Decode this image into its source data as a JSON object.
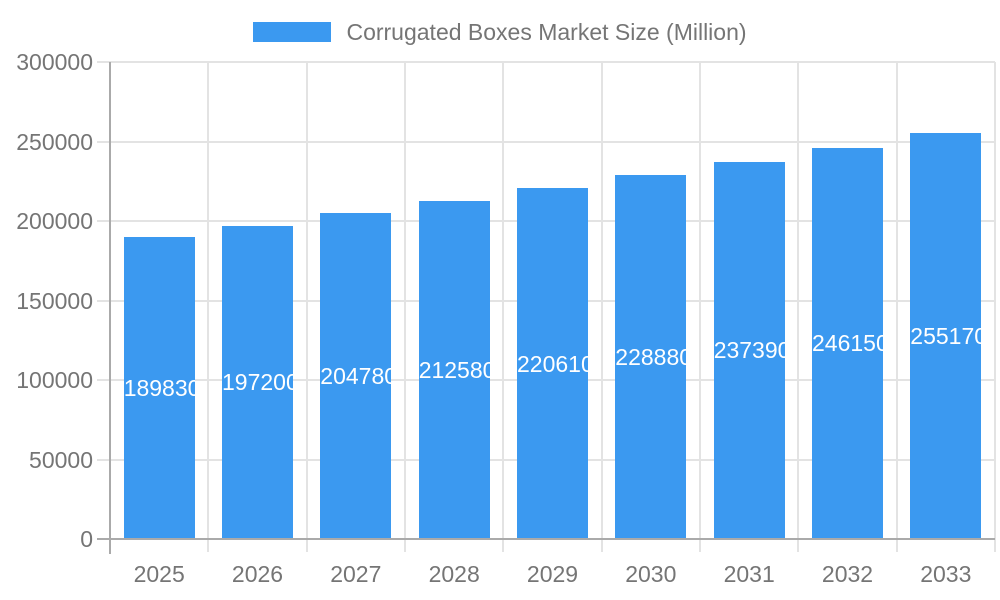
{
  "legend": {
    "label": "Corrugated Boxes Market Size (Million)"
  },
  "chart_data": {
    "type": "bar",
    "series_name": "Corrugated Boxes Market Size (Million)",
    "categories": [
      "2025",
      "2026",
      "2027",
      "2028",
      "2029",
      "2030",
      "2031",
      "2032",
      "2033"
    ],
    "values": [
      189830,
      197200,
      204780,
      212580,
      220610,
      228880,
      237390,
      246150,
      255170
    ],
    "xlabel": "",
    "ylabel": "",
    "ylim": [
      0,
      300000
    ],
    "ytick_interval": 50000,
    "yticks": [
      "0",
      "50000",
      "100000",
      "150000",
      "200000",
      "250000",
      "300000"
    ],
    "grid": "on",
    "legend_position": "top-center",
    "bar_value_labels": "inside-center-white"
  },
  "style": {
    "bar_color": "#3B99F0",
    "gridline_color": "#E3E3E3",
    "axis_line_color": "#AAAAAA",
    "axis_text_color": "#757575",
    "bar_label_color": "#FFFFFF",
    "background_color": "#FFFFFF"
  }
}
